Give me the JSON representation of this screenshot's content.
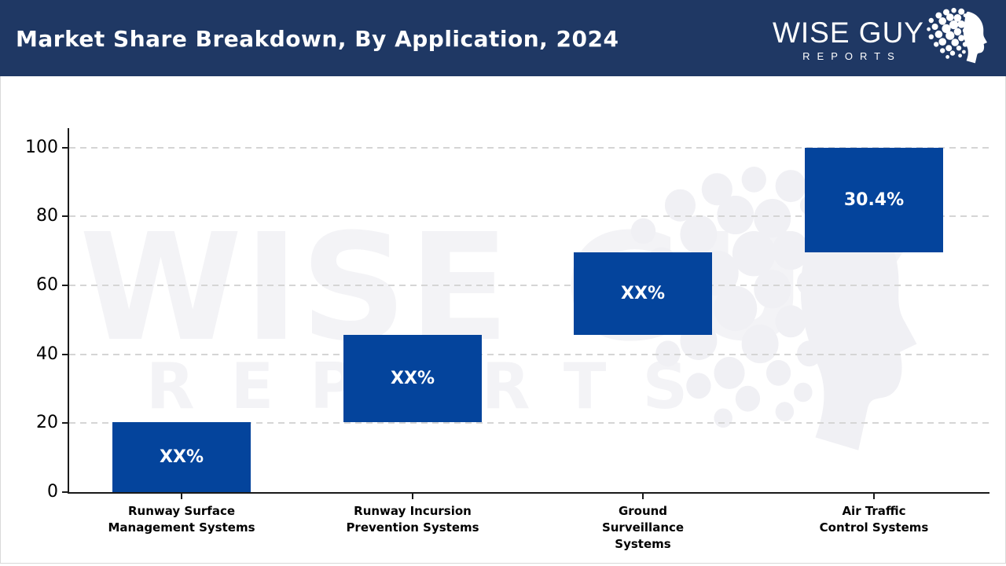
{
  "header": {
    "title": "Market Share Breakdown, By Application, 2024",
    "logo": {
      "name": "WISE GUY",
      "tagline": "REPORTS"
    }
  },
  "watermark": {
    "name": "WISE GUY",
    "tagline": "REPORTS"
  },
  "colors": {
    "header_bg": "#1f3864",
    "bar": "#04449c",
    "bar_label": "#ffffff",
    "grid": "#d5d5d5",
    "axis": "#1a1a1a",
    "watermark": "#f3f3f6",
    "border": "#d9d9d9"
  },
  "chart_data": {
    "type": "bar",
    "subtype": "waterfall-segments",
    "title": "Market Share Breakdown, By Application, 2024",
    "xlabel": "",
    "ylabel": "",
    "categories": [
      "Runway Surface\nManagement Systems",
      "Runway Incursion\nPrevention Systems",
      "Ground\nSurveillance\nSystems",
      "Air Traffic\nControl Systems"
    ],
    "segments": [
      {
        "category": "Runway Surface Management Systems",
        "start": 0,
        "end": 20.4,
        "label": "XX%"
      },
      {
        "category": "Runway Incursion Prevention Systems",
        "start": 20.4,
        "end": 45.7,
        "label": "XX%"
      },
      {
        "category": "Ground Surveillance Systems",
        "start": 45.7,
        "end": 69.6,
        "label": "XX%"
      },
      {
        "category": "Air Traffic Control Systems",
        "start": 69.6,
        "end": 100,
        "label": "30.4%",
        "value": 30.4
      }
    ],
    "yticks": [
      0,
      20,
      40,
      60,
      80,
      100
    ],
    "ylim": [
      0,
      105
    ],
    "grid": "horizontal-dashed",
    "legend": "none"
  }
}
